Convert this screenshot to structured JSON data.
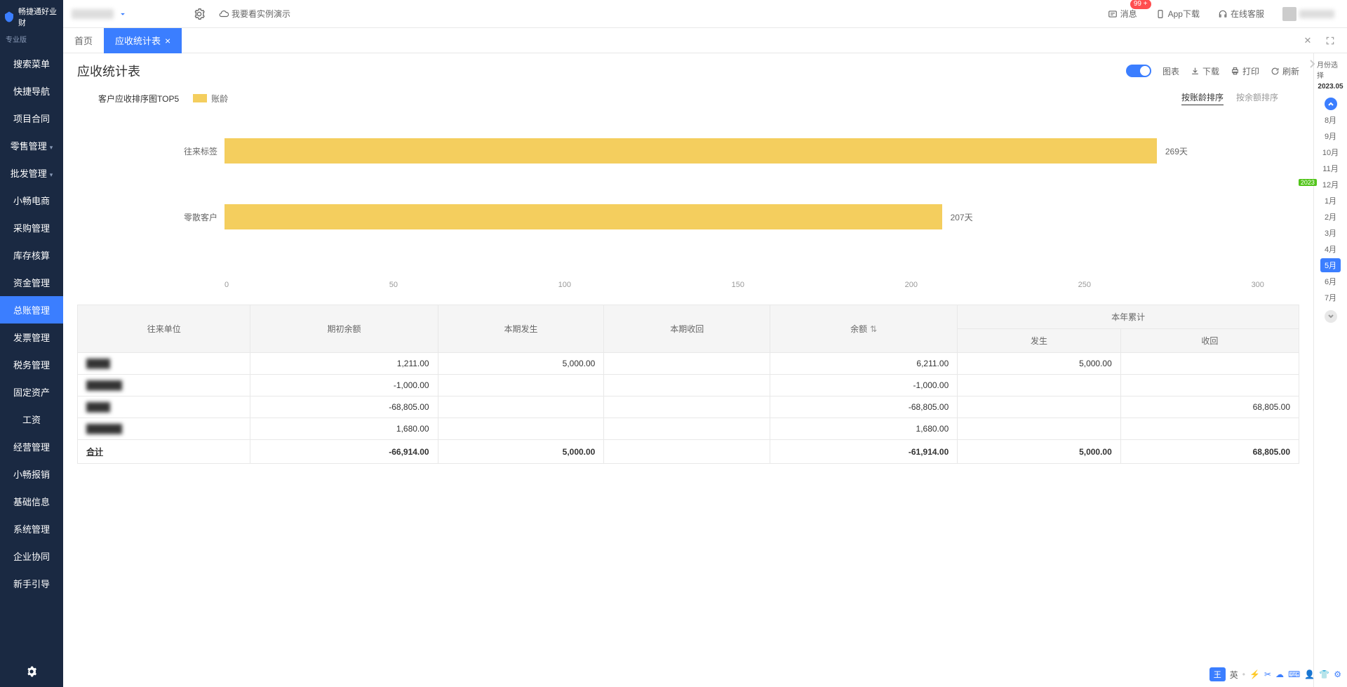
{
  "brand": {
    "name": "畅捷通好业财",
    "version": "专业版"
  },
  "topbar": {
    "demo_link": "我要看实例演示",
    "msg_label": "消息",
    "msg_badge": "99 +",
    "app_label": "App下载",
    "service_label": "在线客服"
  },
  "sidebar": {
    "items": [
      {
        "label": "搜索菜单",
        "key": "search"
      },
      {
        "label": "快捷导航",
        "key": "quicknav"
      },
      {
        "label": "项目合同",
        "key": "project"
      },
      {
        "label": "零售管理",
        "key": "retail",
        "has_sub": true
      },
      {
        "label": "批发管理",
        "key": "wholesale",
        "has_sub": true
      },
      {
        "label": "小畅电商",
        "key": "ecom"
      },
      {
        "label": "采购管理",
        "key": "purchase"
      },
      {
        "label": "库存核算",
        "key": "inventory"
      },
      {
        "label": "资金管理",
        "key": "funds"
      },
      {
        "label": "总账管理",
        "key": "ledger",
        "active": true
      },
      {
        "label": "发票管理",
        "key": "invoice"
      },
      {
        "label": "税务管理",
        "key": "tax"
      },
      {
        "label": "固定资产",
        "key": "assets"
      },
      {
        "label": "工资",
        "key": "salary"
      },
      {
        "label": "经营管理",
        "key": "biz"
      },
      {
        "label": "小畅报销",
        "key": "expense"
      },
      {
        "label": "基础信息",
        "key": "basic"
      },
      {
        "label": "系统管理",
        "key": "system"
      },
      {
        "label": "企业协同",
        "key": "collab"
      },
      {
        "label": "新手引导",
        "key": "guide"
      }
    ]
  },
  "tabs": [
    {
      "label": "首页",
      "active": false
    },
    {
      "label": "应收统计表",
      "active": true,
      "closable": true
    }
  ],
  "page": {
    "title": "应收统计表",
    "toggle_label": "图表",
    "download_label": "下载",
    "print_label": "打印",
    "refresh_label": "刷新"
  },
  "chart": {
    "title": "客户应收排序图TOP5",
    "legend_label": "账龄",
    "legend_color": "#f4ce5e",
    "sort_options": [
      "按账龄排序",
      "按余额排序"
    ],
    "sort_active_index": 0,
    "type": "horizontal-bar",
    "bars": [
      {
        "label": "往来标签",
        "value": 269,
        "display": "269天"
      },
      {
        "label": "零散客户",
        "value": 207,
        "display": "207天"
      }
    ],
    "x_max": 300,
    "x_ticks": [
      "0",
      "50",
      "100",
      "150",
      "200",
      "250",
      "300"
    ],
    "bar_color": "#f4ce5e"
  },
  "table": {
    "columns": {
      "unit": "往来单位",
      "opening": "期初余额",
      "occurred": "本期发生",
      "received": "本期收回",
      "balance": "余额",
      "ytd": "本年累计",
      "ytd_occurred": "发生",
      "ytd_received": "收回"
    },
    "rows": [
      {
        "unit": "████",
        "opening": "1,211.00",
        "occurred": "5,000.00",
        "received": "",
        "balance": "6,211.00",
        "ytd_occurred": "5,000.00",
        "ytd_received": ""
      },
      {
        "unit": "██████",
        "opening": "-1,000.00",
        "occurred": "",
        "received": "",
        "balance": "-1,000.00",
        "ytd_occurred": "",
        "ytd_received": ""
      },
      {
        "unit": "████",
        "opening": "-68,805.00",
        "occurred": "",
        "received": "",
        "balance": "-68,805.00",
        "ytd_occurred": "",
        "ytd_received": "68,805.00"
      },
      {
        "unit": "██████",
        "opening": "1,680.00",
        "occurred": "",
        "received": "",
        "balance": "1,680.00",
        "ytd_occurred": "",
        "ytd_received": ""
      }
    ],
    "footer": {
      "label": "合计",
      "opening": "-66,914.00",
      "occurred": "5,000.00",
      "received": "",
      "balance": "-61,914.00",
      "ytd_occurred": "5,000.00",
      "ytd_received": "68,805.00"
    }
  },
  "month_panel": {
    "title": "月份选择",
    "current": "2023.05",
    "year_badge": "2023",
    "months": [
      {
        "label": "8月"
      },
      {
        "label": "9月"
      },
      {
        "label": "10月"
      },
      {
        "label": "11月"
      },
      {
        "label": "12月"
      },
      {
        "year_break": true
      },
      {
        "label": "1月"
      },
      {
        "label": "2月"
      },
      {
        "label": "3月"
      },
      {
        "label": "4月"
      },
      {
        "label": "5月",
        "selected": true
      },
      {
        "label": "6月"
      },
      {
        "label": "7月"
      }
    ]
  },
  "bottom_toolbar": {
    "im_label": "王",
    "ime_label": "英"
  },
  "colors": {
    "sidebar_bg": "#1a2942",
    "primary": "#3b7eff",
    "bar": "#f4ce5e",
    "border": "#e8e8e8"
  }
}
